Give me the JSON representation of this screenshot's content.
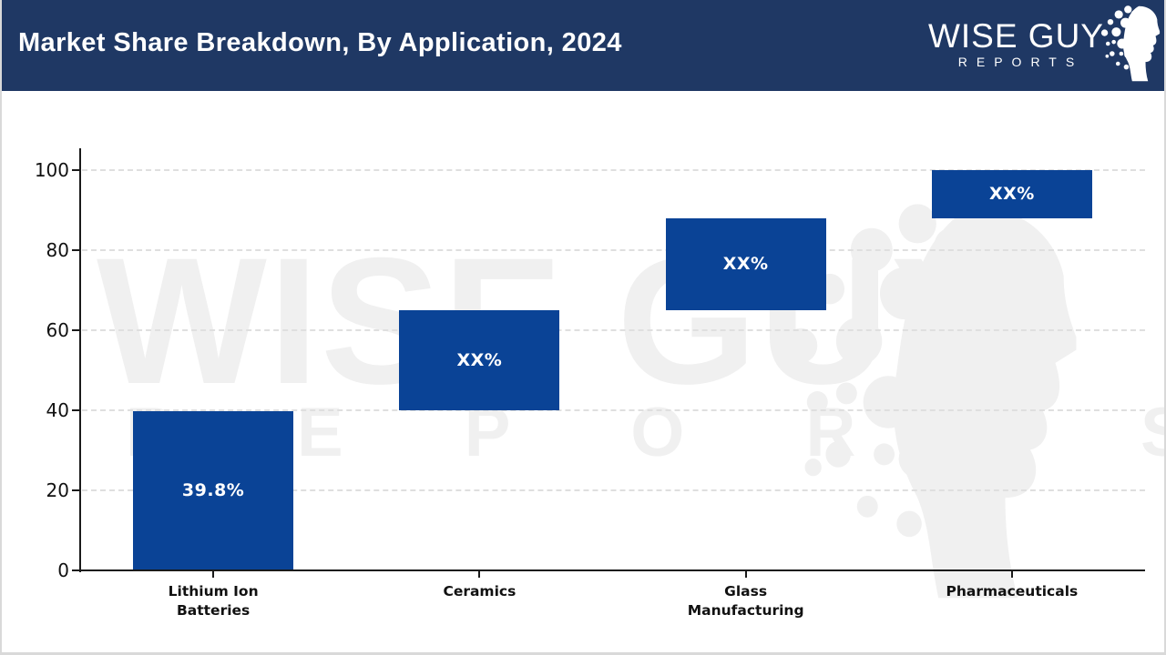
{
  "header": {
    "title": "Market Share Breakdown, By Application, 2024",
    "logo": {
      "wordmark": "WISE GUY",
      "subtitle": "REPORTS"
    }
  },
  "watermark": {
    "line1": "WISE GUY",
    "line2": "R E P O R T S"
  },
  "colors": {
    "header_bg": "#1f3864",
    "bar": "#0a4396",
    "watermark": "#f0f0f0",
    "grid": "#dfdfdf",
    "axis": "#1a1a1a",
    "frame_border": "#d9d9d9",
    "label_text": "#ffffff"
  },
  "chart_data": {
    "type": "bar",
    "subtype": "floating-segment waterfall of market share",
    "title": "Market Share Breakdown, By Application, 2024",
    "categories": [
      "Lithium Ion Batteries",
      "Ceramics",
      "Glass Manufacturing",
      "Pharmaceuticals"
    ],
    "category_label_lines": [
      [
        "Lithium Ion",
        "Batteries"
      ],
      [
        "Ceramics"
      ],
      [
        "Glass",
        "Manufacturing"
      ],
      [
        "Pharmaceuticals"
      ]
    ],
    "bars": [
      {
        "category": "Lithium Ion Batteries",
        "start": 0,
        "end": 39.8,
        "label": "39.8%"
      },
      {
        "category": "Ceramics",
        "start": 40,
        "end": 65,
        "label": "XX%"
      },
      {
        "category": "Glass Manufacturing",
        "start": 65,
        "end": 88,
        "label": "XX%"
      },
      {
        "category": "Pharmaceuticals",
        "start": 88,
        "end": 100,
        "label": "XX%"
      }
    ],
    "xlabel": "",
    "ylabel": "",
    "yticks": [
      0,
      20,
      40,
      60,
      80,
      100
    ],
    "ylim": [
      0,
      105.5
    ],
    "grid": "horizontal dashed",
    "legend": "none",
    "bar_color": "#0a4396"
  }
}
